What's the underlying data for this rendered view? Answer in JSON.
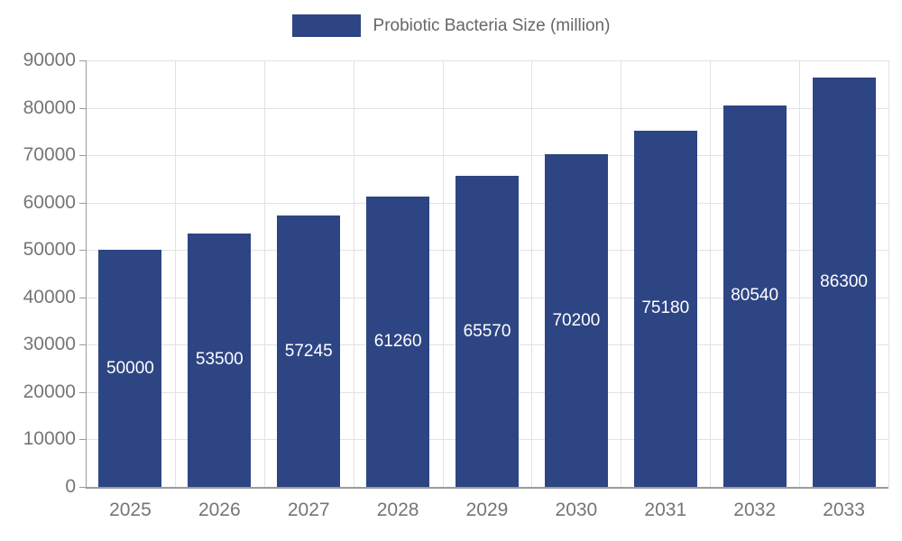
{
  "legend": {
    "label": "Probiotic Bacteria Size (million)"
  },
  "colors": {
    "bar": "#2e4584",
    "value_label": "#ffffff",
    "axis_text": "#757575",
    "legend_text": "#666666",
    "grid": "#e2e2e2",
    "axis_line": "#9c9c9c"
  },
  "chart_data": {
    "type": "bar",
    "title": "Probiotic Bacteria Size (million)",
    "categories": [
      "2025",
      "2026",
      "2027",
      "2028",
      "2029",
      "2030",
      "2031",
      "2032",
      "2033"
    ],
    "values": [
      50000,
      53500,
      57245,
      61260,
      65570,
      70200,
      75180,
      80540,
      86300
    ],
    "xlabel": "",
    "ylabel": "",
    "ylim": [
      0,
      90000
    ],
    "ytick_step": 10000,
    "grid": true,
    "legend_position": "top",
    "value_label_position": "inside-center"
  }
}
